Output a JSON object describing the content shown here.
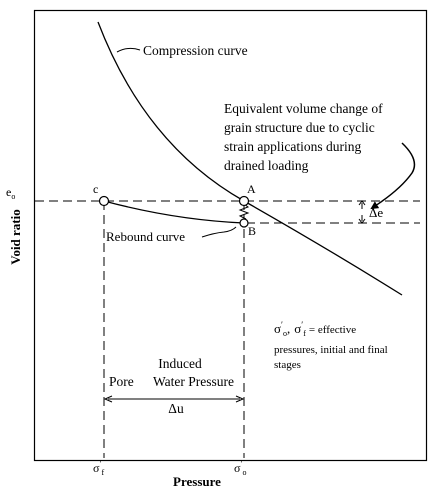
{
  "axes": {
    "x_label": "Pressure",
    "y_label": "Void ratio",
    "x_ticks": [
      {
        "base": "σ",
        "sup": "′",
        "sub": "f"
      },
      {
        "base": "σ",
        "sup": "′",
        "sub": "o"
      }
    ],
    "y_tick": {
      "base": "e",
      "sub": "o"
    }
  },
  "curves": {
    "compression_label": "Compression curve",
    "rebound_label": "Rebound curve"
  },
  "points": {
    "A": "A",
    "B": "B",
    "C": "c"
  },
  "delta_e": {
    "prefix": "Δ",
    "letter": "e"
  },
  "annotation": {
    "lines": [
      "Equivalent volume change of",
      "grain structure due to cyclic",
      "strain applications during",
      "drained loading"
    ]
  },
  "pore_pressure": {
    "line1": "Induced",
    "pore": "Pore",
    "water_pressure": "Water Pressure",
    "delta_u": "Δu"
  },
  "legend": {
    "symbol_o": {
      "base": "σ",
      "sup": "′",
      "sub": "o"
    },
    "separator": ",",
    "symbol_f": {
      "base": "σ",
      "sup": "′",
      "sub": "f"
    },
    "equals": "= effective",
    "line2": "pressures, initial and final",
    "line3": "stages"
  },
  "colors": {
    "ink": "#000000",
    "background": "#ffffff"
  }
}
